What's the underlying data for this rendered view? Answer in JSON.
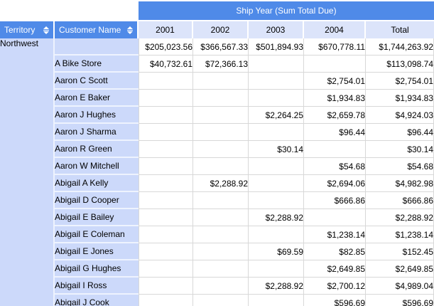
{
  "table": {
    "column_group_header": "Ship Year (Sum Total Due)",
    "row_group_headers": [
      {
        "label": "Territory"
      },
      {
        "label": "Customer Name"
      }
    ],
    "year_columns": [
      "2001",
      "2002",
      "2003",
      "2004",
      "Total"
    ],
    "territory": "Northwest",
    "rows": [
      {
        "customer": "",
        "values": [
          "$205,023.56",
          "$366,567.33",
          "$501,894.93",
          "$670,778.11",
          "$1,744,263.92"
        ]
      },
      {
        "customer": "A Bike Store",
        "values": [
          "$40,732.61",
          "$72,366.13",
          "",
          "",
          "$113,098.74"
        ]
      },
      {
        "customer": "Aaron C Scott",
        "values": [
          "",
          "",
          "",
          "$2,754.01",
          "$2,754.01"
        ]
      },
      {
        "customer": "Aaron E Baker",
        "values": [
          "",
          "",
          "",
          "$1,934.83",
          "$1,934.83"
        ]
      },
      {
        "customer": "Aaron J Hughes",
        "values": [
          "",
          "",
          "$2,264.25",
          "$2,659.78",
          "$4,924.03"
        ]
      },
      {
        "customer": "Aaron J Sharma",
        "values": [
          "",
          "",
          "",
          "$96.44",
          "$96.44"
        ]
      },
      {
        "customer": "Aaron R Green",
        "values": [
          "",
          "",
          "$30.14",
          "",
          "$30.14"
        ]
      },
      {
        "customer": "Aaron W Mitchell",
        "values": [
          "",
          "",
          "",
          "$54.68",
          "$54.68"
        ]
      },
      {
        "customer": "Abigail A Kelly",
        "values": [
          "",
          "$2,288.92",
          "",
          "$2,694.06",
          "$4,982.98"
        ]
      },
      {
        "customer": "Abigail D Cooper",
        "values": [
          "",
          "",
          "",
          "$666.86",
          "$666.86"
        ]
      },
      {
        "customer": "Abigail E Bailey",
        "values": [
          "",
          "",
          "$2,288.92",
          "",
          "$2,288.92"
        ]
      },
      {
        "customer": "Abigail E Coleman",
        "values": [
          "",
          "",
          "",
          "$1,238.14",
          "$1,238.14"
        ]
      },
      {
        "customer": "Abigail E Jones",
        "values": [
          "",
          "",
          "$69.59",
          "$82.85",
          "$152.45"
        ]
      },
      {
        "customer": "Abigail G Hughes",
        "values": [
          "",
          "",
          "",
          "$2,649.85",
          "$2,649.85"
        ]
      },
      {
        "customer": "Abigail I Ross",
        "values": [
          "",
          "",
          "$2,288.92",
          "$2,700.12",
          "$4,989.04"
        ]
      },
      {
        "customer": "Abigail J Cook",
        "values": [
          "",
          "",
          "",
          "$596.69",
          "$596.69"
        ]
      }
    ]
  },
  "icons": {
    "sort_toggle": "up-down-triangles"
  },
  "colors": {
    "header_blue": "#4f8ae8",
    "year_row_bg": "#dce4fa",
    "row_label_bg": "#ccd9fa",
    "grid_line": "#d8d8d8",
    "gap_white": "#ffffff",
    "header_text": "#ffffff",
    "body_text": "#000000"
  }
}
